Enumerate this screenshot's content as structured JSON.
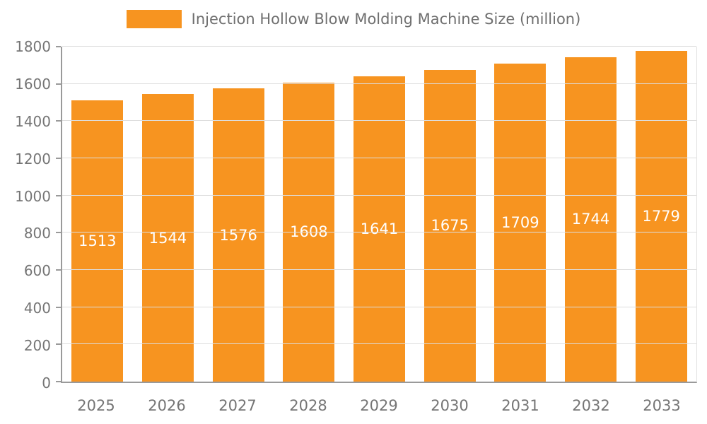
{
  "chart_data": {
    "type": "bar",
    "title": "Injection Hollow Blow Molding Machine Size (million)",
    "categories": [
      "2025",
      "2026",
      "2027",
      "2028",
      "2029",
      "2030",
      "2031",
      "2032",
      "2033"
    ],
    "values": [
      1513,
      1544,
      1576,
      1608,
      1641,
      1675,
      1709,
      1744,
      1779
    ],
    "xlabel": "",
    "ylabel": "",
    "ylim": [
      0,
      1800
    ],
    "ytick_step": 200,
    "ytick_labels": [
      "0",
      "200",
      "400",
      "600",
      "800",
      "1000",
      "1200",
      "1400",
      "1600",
      "1800"
    ],
    "grid": true,
    "legend_position": "top",
    "colors": {
      "bar": "#F79420",
      "value_label": "#ffffff",
      "axis_text": "#757575",
      "legend_text": "#6f6f6f",
      "gridline": "#dddddd",
      "axis_line": "#9a9a9a"
    }
  }
}
